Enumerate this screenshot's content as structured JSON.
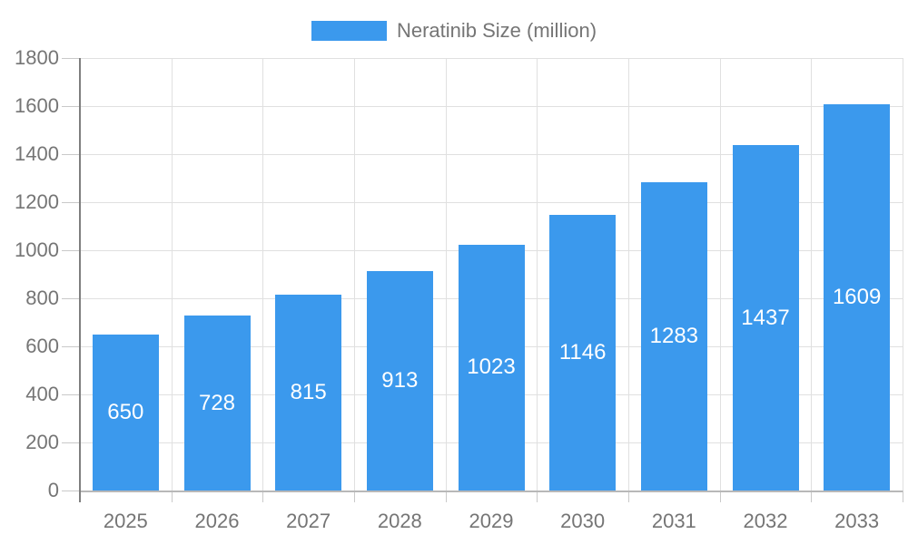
{
  "legend": {
    "label": "Neratinib Size (million)",
    "swatch_color": "#3b99ed"
  },
  "chart_data": {
    "type": "bar",
    "title": "",
    "xlabel": "",
    "ylabel": "",
    "categories": [
      "2025",
      "2026",
      "2027",
      "2028",
      "2029",
      "2030",
      "2031",
      "2032",
      "2033"
    ],
    "values": [
      650,
      728,
      815,
      913,
      1023,
      1146,
      1283,
      1437,
      1609
    ],
    "series_name": "Neratinib Size (million)",
    "ylim": [
      0,
      1800
    ],
    "ytick_step": 200,
    "yticks": [
      0,
      200,
      400,
      600,
      800,
      1000,
      1200,
      1400,
      1600,
      1800
    ],
    "grid": true,
    "legend_position": "top",
    "bar_color": "#3b99ed",
    "bar_value_label_color": "#ffffff",
    "axis_label_color": "#757575",
    "gridline_color": "#e0e0e0",
    "y_axis_line_color": "#7f7f7f",
    "x_axis_line_color": "#b8b8b8",
    "background_color": "#ffffff"
  }
}
